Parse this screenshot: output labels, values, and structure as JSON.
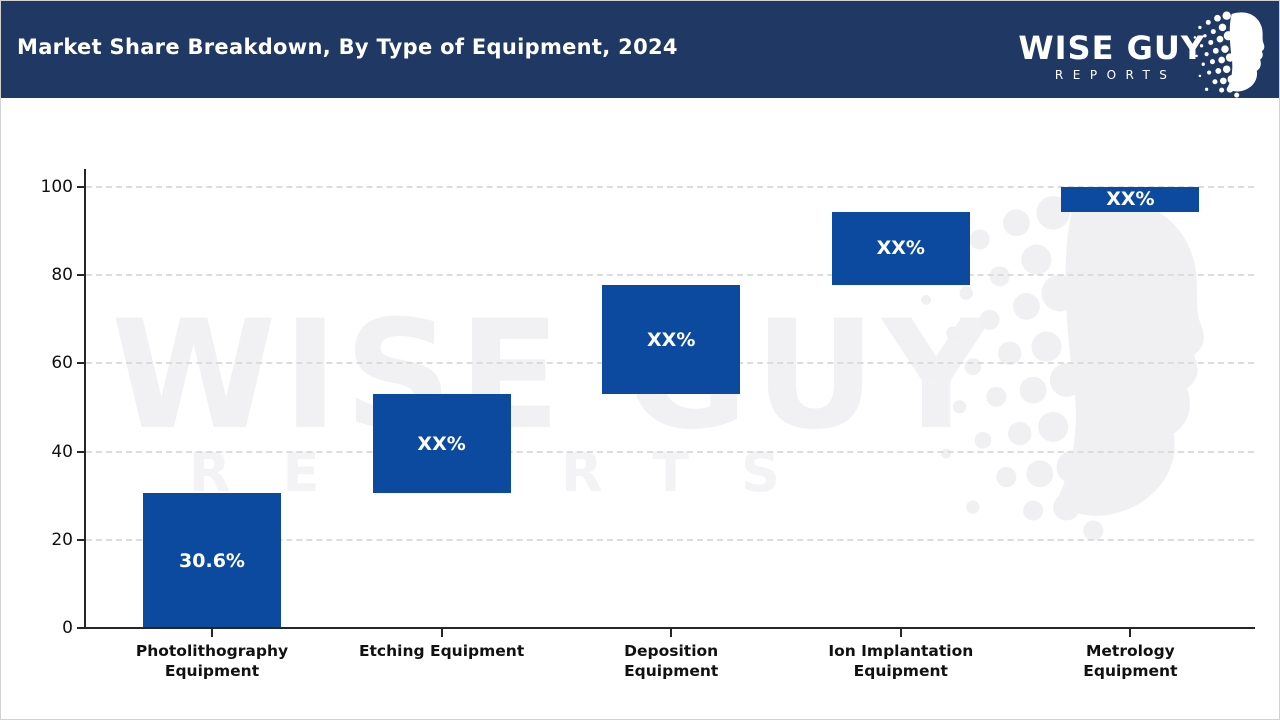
{
  "header": {
    "title": "Market Share Breakdown, By Type of Equipment, 2024",
    "bg_color": "#1f3864",
    "logo": {
      "line1": "WISE GUY",
      "line2": "REPORTS"
    }
  },
  "watermark": {
    "line1": "WISE GUY",
    "line2": "REPORTS"
  },
  "chart_data": {
    "type": "bar",
    "variant": "waterfall",
    "title": "Market Share Breakdown, By Type of Equipment, 2024",
    "categories": [
      "Photolithography Equipment",
      "Etching Equipment",
      "Deposition Equipment",
      "Ion Implantation Equipment",
      "Metrology Equipment"
    ],
    "category_lines": [
      [
        "Photolithography",
        "Equipment"
      ],
      [
        "Etching Equipment"
      ],
      [
        "Deposition",
        "Equipment"
      ],
      [
        "Ion Implantation",
        "Equipment"
      ],
      [
        "Metrology",
        "Equipment"
      ]
    ],
    "segments": [
      {
        "start": 0,
        "end": 30.6,
        "label": "30.6%"
      },
      {
        "start": 30.6,
        "end": 53.0,
        "label": "XX%"
      },
      {
        "start": 53.0,
        "end": 77.8,
        "label": "XX%"
      },
      {
        "start": 77.8,
        "end": 94.4,
        "label": "XX%"
      },
      {
        "start": 94.4,
        "end": 100.0,
        "label": "XX%"
      }
    ],
    "ylim": [
      0,
      100
    ],
    "yticks": [
      0,
      20,
      40,
      60,
      80,
      100
    ],
    "grid": "horizontal-dashed",
    "legend": "none",
    "bar_color": "#0b4a9e",
    "bar_label_color": "#ffffff",
    "gridline_color": "#dcdcdc",
    "axis_color": "#262626"
  }
}
